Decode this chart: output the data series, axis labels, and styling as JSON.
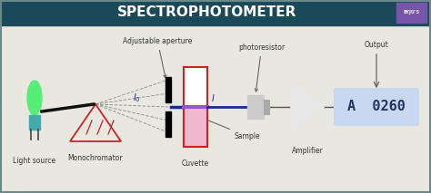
{
  "title": "SPECTROPHOTOMETER",
  "title_bg": "#1a4a5a",
  "title_color": "white",
  "bg_color": "#e8e8e0",
  "border_color": "#6a8a8a",
  "beam_color": "#1a2a99",
  "beam_color2": "#6644aa",
  "monochromator_color": "#cc2222",
  "cuvette_fill_top": "#ffffff",
  "cuvette_fill_bottom": "#e0aacc",
  "cuvette_border": "#cc2222",
  "display_bg": "#c8d8f0",
  "display_border": "#7799cc",
  "display_text": "A  0260",
  "label_color": "#333333",
  "logo_bg": "#7755aa",
  "aperture_label": "Adjustable aperture",
  "light_source_label": "Light source",
  "monochromator_label": "Monochromator",
  "cuvette_label": "Cuvette",
  "sample_label": "Sample",
  "photoresistor_label": "photoresistor",
  "amplifier_label": "Amplifier",
  "output_label": "Output",
  "I0_label": "I₀",
  "I_label": "I"
}
